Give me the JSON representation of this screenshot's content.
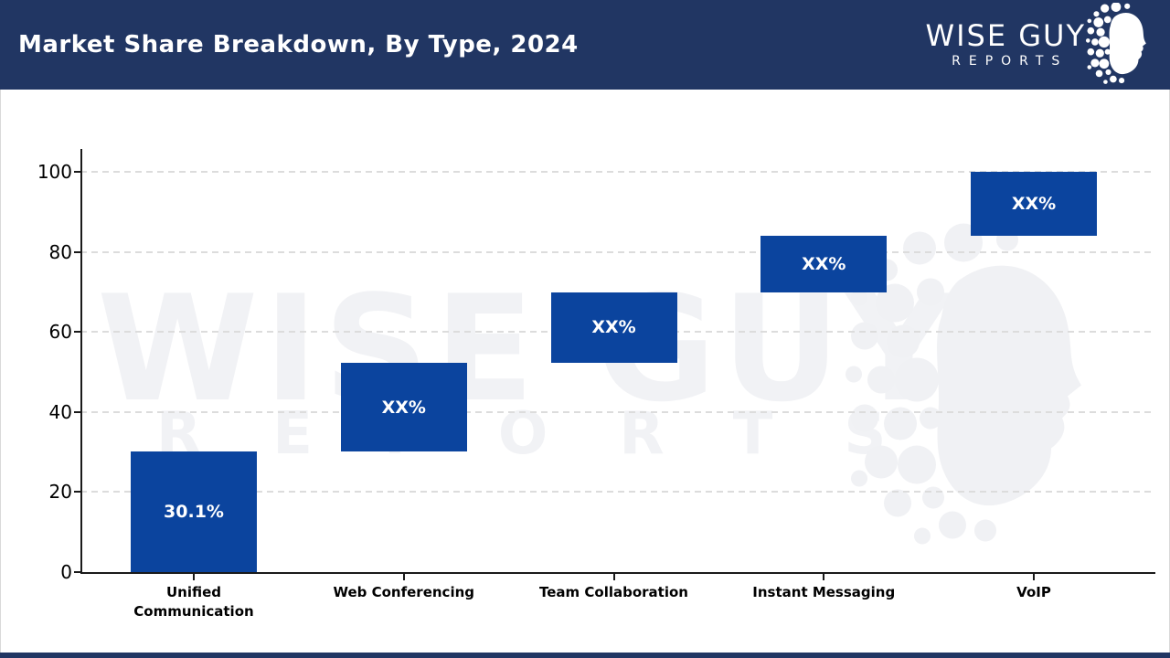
{
  "header": {
    "title": "Market Share Breakdown, By Type, 2024",
    "logo": {
      "line1": "WISE GUY",
      "line2": "REPORTS"
    },
    "bg_color": "#213663"
  },
  "watermark": {
    "line1": "WISE GUY",
    "line2": "REPORTS"
  },
  "chart_data": {
    "type": "bar",
    "variant": "floating-range-waterfall",
    "title": "Market Share Breakdown, By Type, 2024",
    "categories": [
      "Unified Communication",
      "Web Conferencing",
      "Team Collaboration",
      "Instant Messaging",
      "VoIP"
    ],
    "bars": [
      {
        "category": "Unified Communication",
        "start": 0,
        "end": 30.1,
        "label": "30.1%"
      },
      {
        "category": "Web Conferencing",
        "start": 30.1,
        "end": 52.3,
        "label": "XX%"
      },
      {
        "category": "Team Collaboration",
        "start": 52.3,
        "end": 69.9,
        "label": "XX%"
      },
      {
        "category": "Instant Messaging",
        "start": 69.9,
        "end": 84.0,
        "label": "XX%"
      },
      {
        "category": "VoIP",
        "start": 84.0,
        "end": 100.0,
        "label": "XX%"
      }
    ],
    "yticks": [
      0,
      20,
      40,
      60,
      80,
      100
    ],
    "ytick_labels": [
      "0",
      "20",
      "40",
      "60",
      "80",
      "100"
    ],
    "ylim": [
      0,
      105
    ],
    "xlabel": "",
    "ylabel": "",
    "grid": "horizontal-dashed",
    "legend": "none",
    "colors": {
      "bar": "#0b449e",
      "bar_label": "#ffffff",
      "axis": "#1a1a1a",
      "gridline": "#dcdcdc",
      "watermark": "#f1f2f5"
    }
  }
}
